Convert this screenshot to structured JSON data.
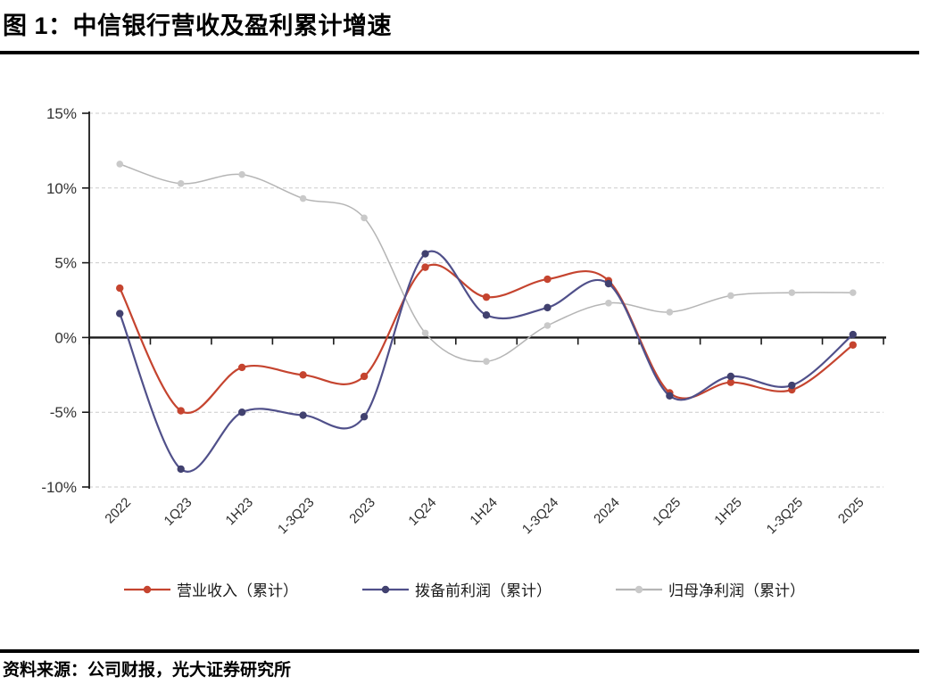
{
  "figure": {
    "title": "图 1：中信银行营收及盈利累计增速",
    "source": "资料来源：公司财报，光大证券研究所"
  },
  "chart_data": {
    "type": "line",
    "title": "中信银行营收及盈利累计增速",
    "categories": [
      "2022",
      "1Q23",
      "1H23",
      "1-3Q23",
      "2023",
      "1Q24",
      "1H24",
      "1-3Q24",
      "2024",
      "1Q25",
      "1H25",
      "1-3Q25",
      "2025"
    ],
    "series": [
      {
        "name": "营业收入（累计）",
        "color": "#c5442f",
        "marker_color": "#c5442f",
        "line_width": 2.2,
        "marker_radius": 4.2,
        "values": [
          3.3,
          -4.9,
          -2.0,
          -2.5,
          -2.6,
          4.7,
          2.7,
          3.9,
          3.8,
          -3.7,
          -3.0,
          -3.5,
          -0.5
        ]
      },
      {
        "name": "拨备前利润（累计）",
        "color": "#50508a",
        "marker_color": "#41416f",
        "line_width": 2.2,
        "marker_radius": 4.2,
        "values": [
          1.6,
          -8.8,
          -5.0,
          -5.2,
          -5.3,
          5.6,
          1.5,
          2.0,
          3.6,
          -3.9,
          -2.6,
          -3.2,
          0.2
        ]
      },
      {
        "name": "归母净利润（累计）",
        "color": "#b5b5b5",
        "marker_color": "#c9c9c9",
        "line_width": 1.5,
        "marker_radius": 3.8,
        "values": [
          11.6,
          10.3,
          10.9,
          9.3,
          8.0,
          0.3,
          -1.6,
          0.8,
          2.3,
          1.7,
          2.8,
          3.0,
          3.0
        ]
      }
    ],
    "unit": "%",
    "ylim": [
      -10,
      15
    ],
    "yticks": [
      15,
      10,
      5,
      0,
      -5,
      -10
    ],
    "ytick_labels": [
      "15%",
      "10%",
      "5%",
      "0%",
      "-5%",
      "-10%"
    ],
    "grid": "horizontal-dashed",
    "legend_position": "bottom",
    "axis_color": "#1a1a1a",
    "grid_color": "#cbcbcb",
    "tick_label_color": "#333333"
  }
}
